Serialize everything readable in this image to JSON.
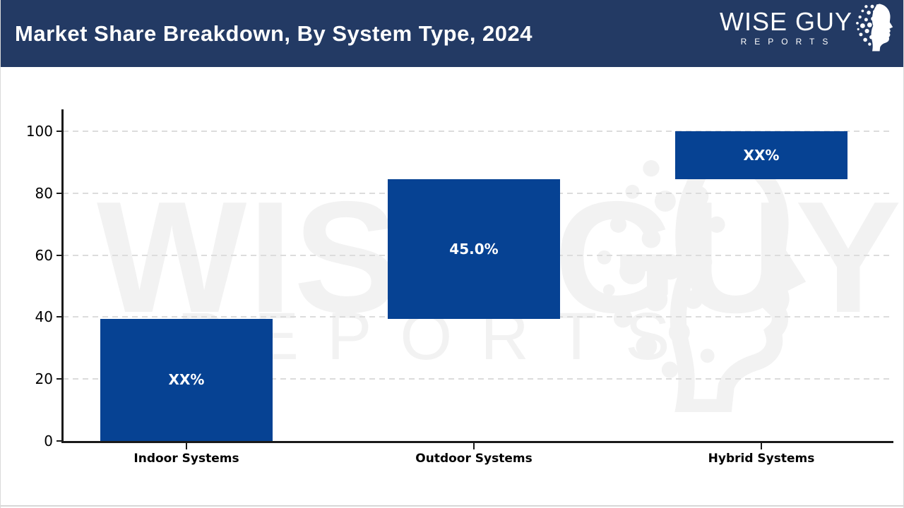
{
  "header": {
    "title": "Market Share Breakdown, By System Type, 2024",
    "bg_color": "#233A64",
    "logo": {
      "wordmark": "WISE GUY",
      "subtext": "REPORTS"
    }
  },
  "watermark": {
    "wordmark": "WISE GUY",
    "subtext": "REPORTS"
  },
  "chart_data": {
    "type": "bar",
    "subtype": "stacked-waterfall-segments",
    "title": "Market Share Breakdown, By System Type, 2024",
    "categories": [
      "Indoor Systems",
      "Outdoor Systems",
      "Hybrid Systems"
    ],
    "series": [
      {
        "category": "Indoor Systems",
        "label": "XX%",
        "start": 0,
        "end": 39.5
      },
      {
        "category": "Outdoor Systems",
        "label": "45.0%",
        "start": 39.5,
        "end": 84.5
      },
      {
        "category": "Hybrid Systems",
        "label": "XX%",
        "start": 84.5,
        "end": 100
      }
    ],
    "xlabel": "",
    "ylabel": "",
    "ylim": [
      0,
      100
    ],
    "yticks": [
      0,
      20,
      40,
      60,
      80,
      100
    ],
    "grid": "horizontal-dashed",
    "legend": "none",
    "bar_color": "#064293",
    "bar_label_color": "#FFFFFF",
    "gridline_color": "#DCDCDC",
    "axis_color": "#1A1A1A"
  }
}
